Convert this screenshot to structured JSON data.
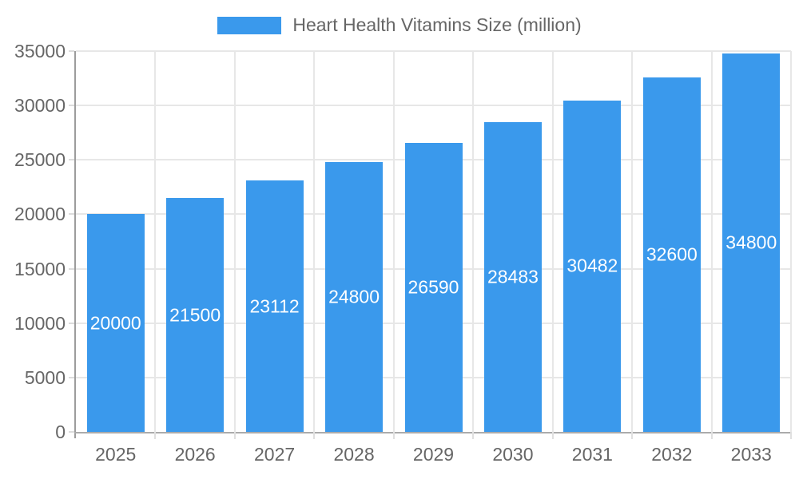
{
  "chart_data": {
    "type": "bar",
    "title": "",
    "legend": "Heart Health Vitamins Size (million)",
    "legend_position": "top",
    "categories": [
      "2025",
      "2026",
      "2027",
      "2028",
      "2029",
      "2030",
      "2031",
      "2032",
      "2033"
    ],
    "values": [
      20000,
      21500,
      23112,
      24800,
      26590,
      28483,
      30482,
      32600,
      34800
    ],
    "data_labels": [
      "20000",
      "21500",
      "23112",
      "24800",
      "26590",
      "28483",
      "30482",
      "32600",
      "34800"
    ],
    "xlabel": "",
    "ylabel": "",
    "ylim": [
      0,
      35000
    ],
    "yticks": [
      0,
      5000,
      10000,
      15000,
      20000,
      25000,
      30000,
      35000
    ],
    "ytick_labels": [
      "0",
      "5000",
      "10000",
      "15000",
      "20000",
      "25000",
      "30000",
      "35000"
    ],
    "grid": true,
    "bar_color": "#3A99EC",
    "bar_label_color": "#ffffff",
    "axis_text_color": "#666666"
  }
}
